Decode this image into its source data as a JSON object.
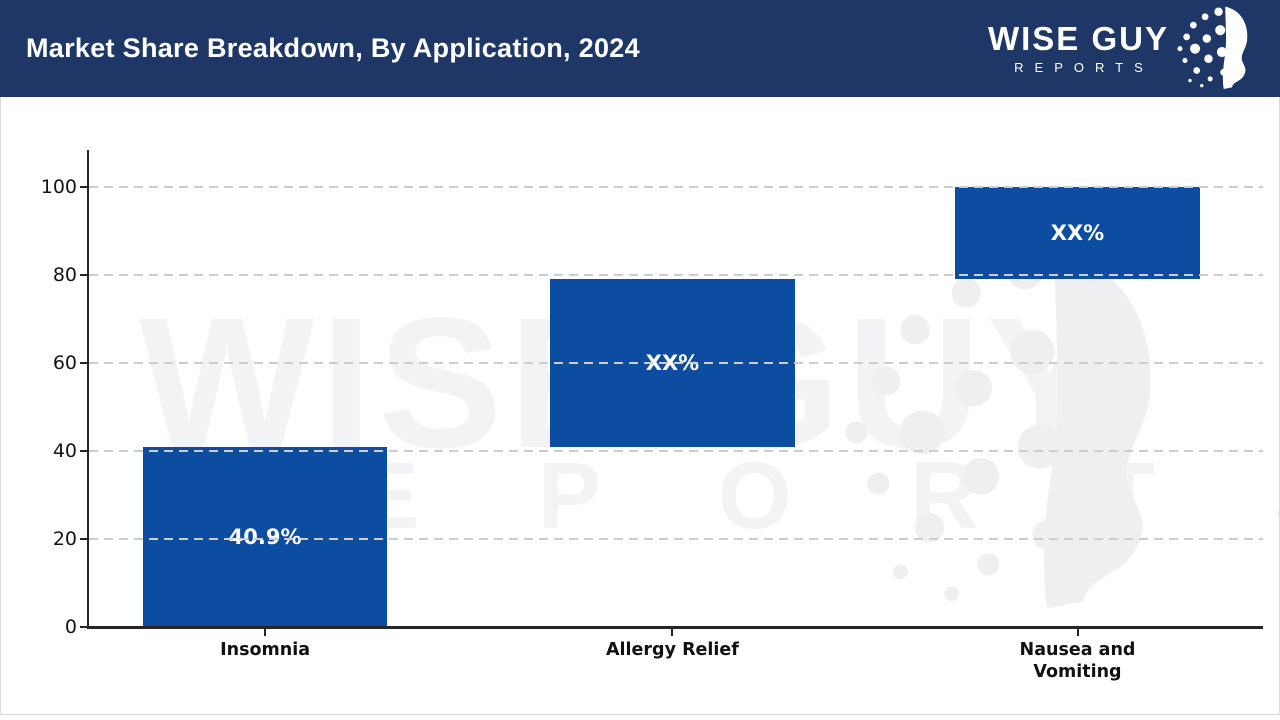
{
  "header": {
    "title": "Market Share Breakdown, By Application, 2024",
    "logo": {
      "line1": "WISE GUY",
      "line2": "REPORTS"
    }
  },
  "watermark": {
    "line1": "WISE GUY",
    "line2": "R E P O R T S"
  },
  "colors": {
    "header_bg": "#1f3766",
    "bar": "#0c4da2",
    "grid": "#cdcdcd",
    "axis": "#262626",
    "bar_label": "#ffffff",
    "watermark": "#f3f3f5"
  },
  "chart_data": {
    "type": "bar",
    "subtype": "waterfall",
    "title": "Market Share Breakdown, By Application, 2024",
    "categories": [
      "Insomnia",
      "Allergy Relief",
      "Nausea and\nVomiting"
    ],
    "segments": [
      {
        "category": "Insomnia",
        "start": 0,
        "end": 40.9,
        "label": "40.9%"
      },
      {
        "category": "Allergy Relief",
        "start": 40.9,
        "end": 79,
        "label": "XX%"
      },
      {
        "category": "Nausea and Vomiting",
        "start": 79,
        "end": 100,
        "label": "XX%"
      }
    ],
    "ylim": [
      0,
      100
    ],
    "yticks": [
      0,
      20,
      40,
      60,
      80,
      100
    ],
    "grid": "horizontal-dashed",
    "legend": "none",
    "xlabel": "",
    "ylabel": ""
  }
}
